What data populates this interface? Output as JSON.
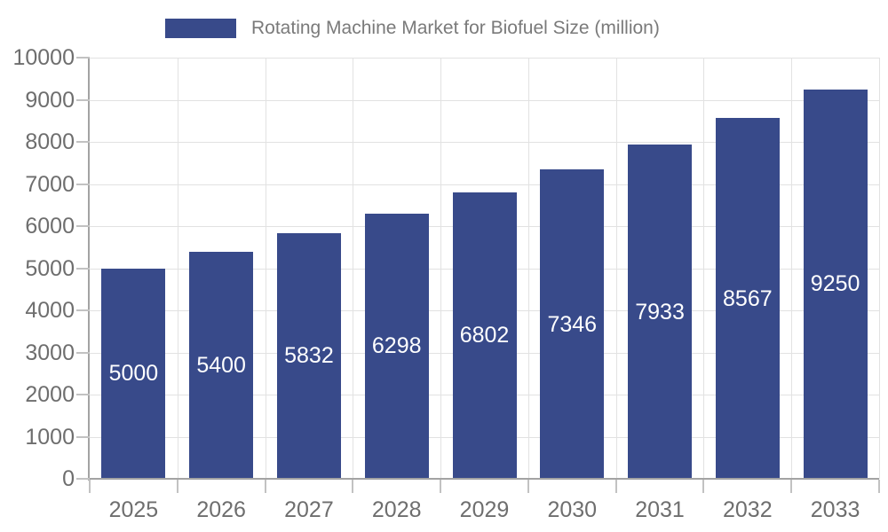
{
  "legend": {
    "label": "Rotating Machine Market for Biofuel Size (million)"
  },
  "chart_data": {
    "type": "bar",
    "title": "Rotating Machine Market for Biofuel Size (million)",
    "categories": [
      "2025",
      "2026",
      "2027",
      "2028",
      "2029",
      "2030",
      "2031",
      "2032",
      "2033"
    ],
    "values": [
      5000,
      5400,
      5832,
      6298,
      6802,
      7346,
      7933,
      8567,
      9250
    ],
    "xlabel": "",
    "ylabel": "",
    "ylim": [
      0,
      10000
    ],
    "ytick_step": 1000,
    "yticks": [
      0,
      1000,
      2000,
      3000,
      4000,
      5000,
      6000,
      7000,
      8000,
      9000,
      10000
    ],
    "grid": true,
    "legend_position": "top",
    "bar_labels_inside": true,
    "colors": {
      "bar": "#384A8A",
      "bar_label": "#ffffff",
      "gridline": "#e2e2e2",
      "axis_line": "#a3a3a3",
      "tick": "#c2c2c2",
      "tick_label": "#6e6e6e",
      "legend_label": "#7a7a7a",
      "background": "#ffffff"
    }
  }
}
